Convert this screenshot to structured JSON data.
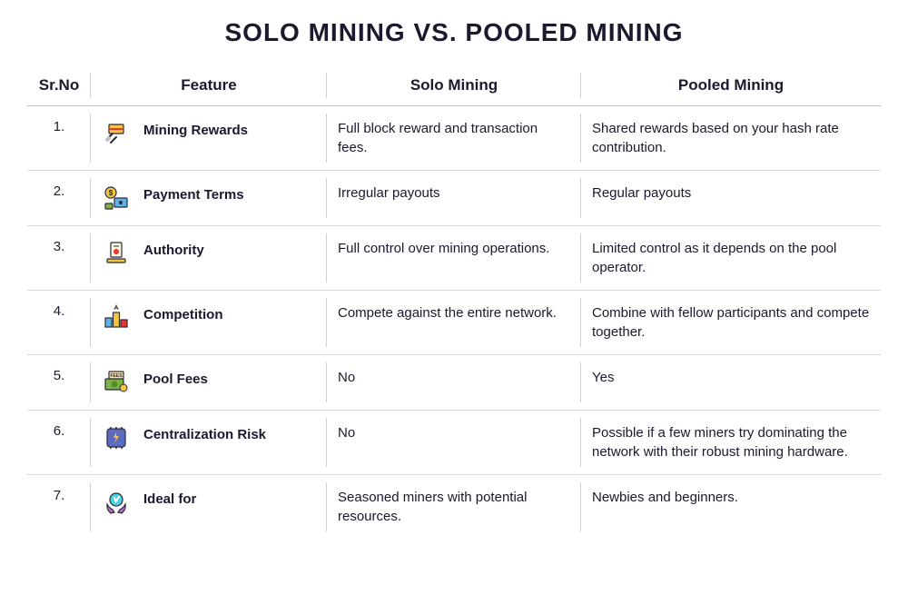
{
  "title": "SOLO MINING VS. POOLED MINING",
  "headers": {
    "srno": "Sr.No",
    "feature": "Feature",
    "solo": "Solo Mining",
    "pooled": "Pooled Mining"
  },
  "rows": [
    {
      "srno": "1.",
      "icon": "rewards-icon",
      "feature": "Mining Rewards",
      "solo": "Full block reward and transaction fees.",
      "pooled": "Shared rewards based on your hash rate contribution."
    },
    {
      "srno": "2.",
      "icon": "payment-icon",
      "feature": "Payment Terms",
      "solo": "Irregular payouts",
      "pooled": "Regular payouts"
    },
    {
      "srno": "3.",
      "icon": "authority-icon",
      "feature": "Authority",
      "solo": "Full control over mining operations.",
      "pooled": "Limited control as it depends on the pool operator."
    },
    {
      "srno": "4.",
      "icon": "competition-icon",
      "feature": "Competition",
      "solo": "Compete against the entire network.",
      "pooled": "Combine with fellow participants and compete together."
    },
    {
      "srno": "5.",
      "icon": "fees-icon",
      "feature": "Pool Fees",
      "solo": "No",
      "pooled": "Yes"
    },
    {
      "srno": "6.",
      "icon": "centralization-icon",
      "feature": "Centralization Risk",
      "solo": "No",
      "pooled": "Possible if a few miners try dominating the network with their robust mining hardware."
    },
    {
      "srno": "7.",
      "icon": "ideal-icon",
      "feature": "Ideal for",
      "solo": "Seasoned miners with potential resources.",
      "pooled": "Newbies and beginners."
    }
  ],
  "colors": {
    "text": "#1a1a2e",
    "border": "#d0d0d0",
    "bg": "#ffffff"
  }
}
